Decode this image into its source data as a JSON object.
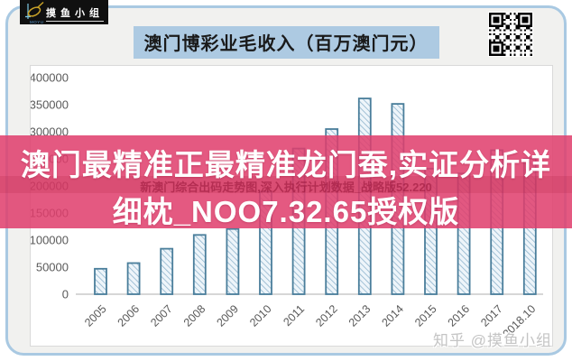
{
  "header": {
    "logo": {
      "brand_cn": "摸鱼小组",
      "brand_en": "MOYU"
    },
    "title": "澳门博彩业毛收入（百万澳门元）"
  },
  "overlay_banner": {
    "line1": "澳门最精准正最精准龙门蚕,实证分析详",
    "line2": "细枕_NOO7.32.65授权版",
    "sub_text": "新澳门综合出码走势图,深入执行计划数据_战略版52.220"
  },
  "footer": {
    "watermark": "知乎 @摸鱼小组"
  },
  "colors": {
    "frame_border": "#a9c9e2",
    "page_background": "#f1f1ef",
    "title_highlight": "#adcae2",
    "banner_pink": "#e03e6c",
    "bar_outline": "#4a7e9b",
    "bar_hatch": "#8fb4cd",
    "bar_fill": "#eef5fa",
    "axis_text": "#595959"
  },
  "chart_data": {
    "type": "bar",
    "title": "澳门博彩业毛收入（百万澳门元）",
    "categories": [
      "2005",
      "2006",
      "2007",
      "2008",
      "2009",
      "2010",
      "2011",
      "2012",
      "2013",
      "2014",
      "2015",
      "2016",
      "2017",
      "2018.10"
    ],
    "values": [
      47000,
      57500,
      84000,
      109500,
      120500,
      189500,
      269000,
      305000,
      361500,
      351500,
      232000,
      223000,
      266000,
      250500
    ],
    "xlabel": "",
    "ylabel": "",
    "ylim": [
      0,
      400000
    ],
    "ytick_step": 50000,
    "grid": false,
    "legend": null,
    "bar_style": "diagonal-hatch with steel-blue outline"
  }
}
